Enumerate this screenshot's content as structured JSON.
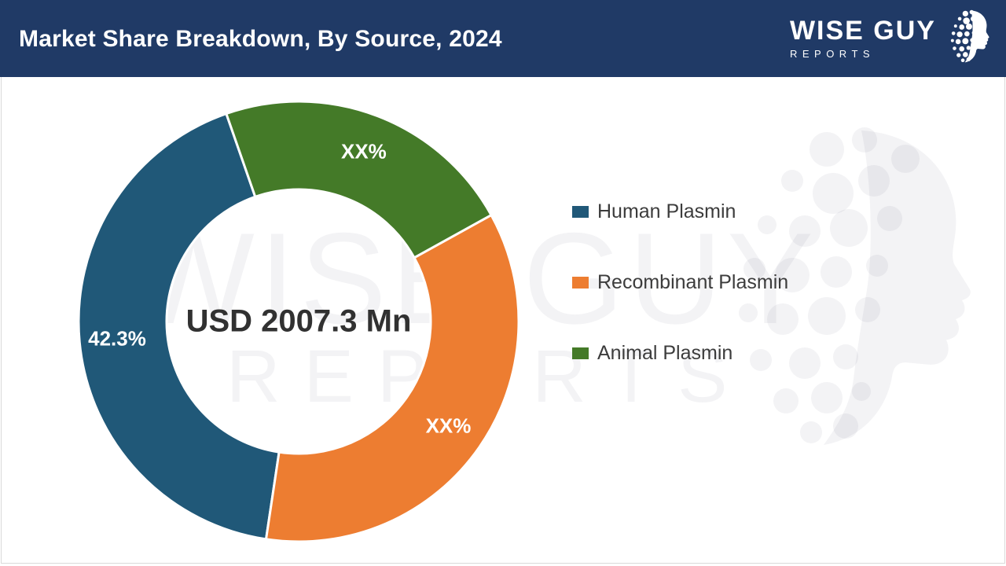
{
  "header": {
    "title": "Market Share Breakdown, By Source, 2024",
    "brand": {
      "name": "WISE GUY",
      "subname": "REPORTS"
    }
  },
  "watermark": {
    "line1": "WISE GUY",
    "line2": "REPORTS"
  },
  "colors": {
    "header_bg": "#203A66",
    "center_text": "#313131",
    "legend_text": "#3C3C3C",
    "slice_gap": "#FFFFFF"
  },
  "chart_data": {
    "type": "pie",
    "subtype": "donut",
    "title": "Market Share Breakdown, By Source, 2024",
    "center_label": "USD 2007.3 Mn",
    "legend_position": "right",
    "start_angle_deg": 109.2,
    "series": [
      {
        "name": "Human Plasmin",
        "value": 42.3,
        "label": "42.3%",
        "color": "#205878"
      },
      {
        "name": "Recombinant Plasmin",
        "value": 35.4,
        "label": "XX%",
        "color": "#ED7D31"
      },
      {
        "name": "Animal Plasmin",
        "value": 22.3,
        "label": "XX%",
        "color": "#447A28"
      }
    ]
  }
}
